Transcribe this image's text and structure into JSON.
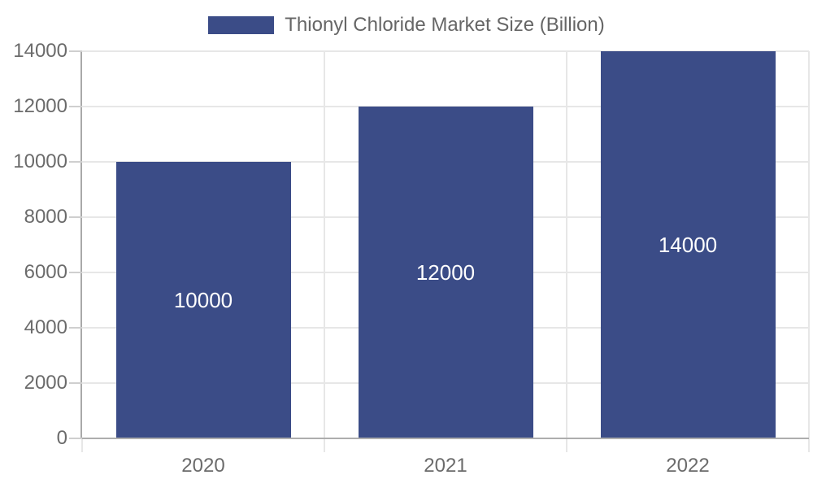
{
  "chart_data": {
    "type": "bar",
    "title": "",
    "legend": {
      "label": "Thionyl Chloride Market Size (Billion)",
      "position": "top-center"
    },
    "categories": [
      "2020",
      "2021",
      "2022"
    ],
    "series": [
      {
        "name": "Thionyl Chloride Market Size (Billion)",
        "values": [
          10000,
          12000,
          14000
        ],
        "data_labels": [
          "10000",
          "12000",
          "14000"
        ]
      }
    ],
    "xlabel": "",
    "ylabel": "",
    "ylim": [
      0,
      14000
    ],
    "ytick_step": 2000,
    "yticks": [
      "0",
      "2000",
      "4000",
      "6000",
      "8000",
      "10000",
      "12000",
      "14000"
    ],
    "grid": true,
    "colors": {
      "bar": "#3b4c87",
      "gridline": "#e7e7e7",
      "y_axis_line": "#a9a9a9",
      "x_axis_line": "#adadad",
      "tick_line": "#cfcfcf",
      "axis_text": "#6b6b6b",
      "legend_text": "#666666",
      "bar_label_text": "#ffffff",
      "background": "#ffffff"
    }
  }
}
